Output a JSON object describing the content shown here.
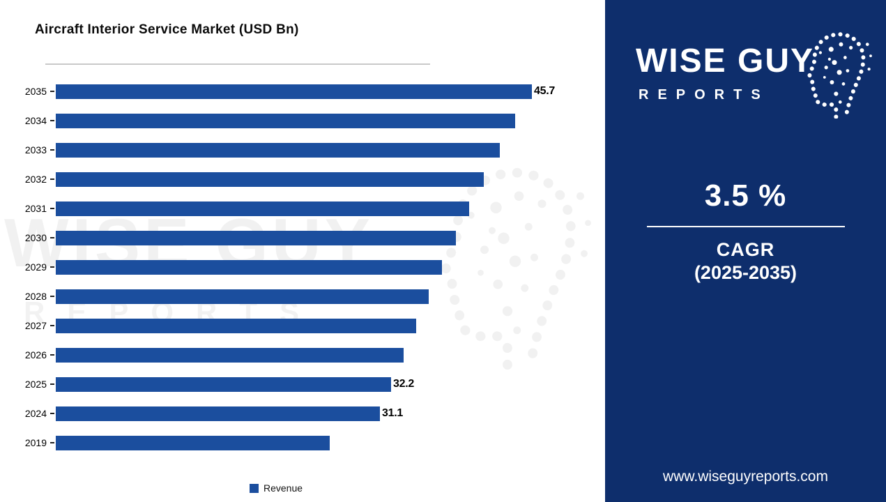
{
  "chart_data": {
    "type": "bar",
    "orientation": "horizontal",
    "title": "Aircraft Interior Service Market (USD Bn)",
    "xlabel": "",
    "ylabel": "",
    "value_unit": "USD Bn",
    "series_name": "Revenue",
    "bar_color": "#1B4E9E",
    "legend_position": "bottom",
    "category_order": "top-to-bottom",
    "xlim": [
      0,
      48
    ],
    "categories": [
      "2035",
      "2034",
      "2033",
      "2032",
      "2031",
      "2030",
      "2029",
      "2028",
      "2027",
      "2026",
      "2025",
      "2024",
      "2019"
    ],
    "points": [
      {
        "year": "2035",
        "value": 45.7,
        "label": "45.7"
      },
      {
        "year": "2034",
        "value": 44.1,
        "label": ""
      },
      {
        "year": "2033",
        "value": 42.6,
        "label": ""
      },
      {
        "year": "2032",
        "value": 41.1,
        "label": ""
      },
      {
        "year": "2031",
        "value": 39.7,
        "label": ""
      },
      {
        "year": "2030",
        "value": 38.4,
        "label": ""
      },
      {
        "year": "2029",
        "value": 37.1,
        "label": ""
      },
      {
        "year": "2028",
        "value": 35.8,
        "label": ""
      },
      {
        "year": "2027",
        "value": 34.6,
        "label": ""
      },
      {
        "year": "2026",
        "value": 33.4,
        "label": ""
      },
      {
        "year": "2025",
        "value": 32.2,
        "label": "32.2"
      },
      {
        "year": "2024",
        "value": 31.1,
        "label": "31.1"
      },
      {
        "year": "2019",
        "value": 26.3,
        "label": ""
      }
    ],
    "value_labels_shown_for": [
      "2035",
      "2025",
      "2024"
    ]
  },
  "watermark": {
    "line1": "WISE GUY",
    "line2": "REPORTS"
  },
  "panel": {
    "bg_color": "#0E2E6C",
    "logo": {
      "line1": "WISE GUY",
      "line2": "REPORTS"
    },
    "cagr_value": "3.5 %",
    "cagr_label": "CAGR",
    "cagr_period": "(2025-2035)",
    "website": "www.wiseguyreports.com"
  }
}
